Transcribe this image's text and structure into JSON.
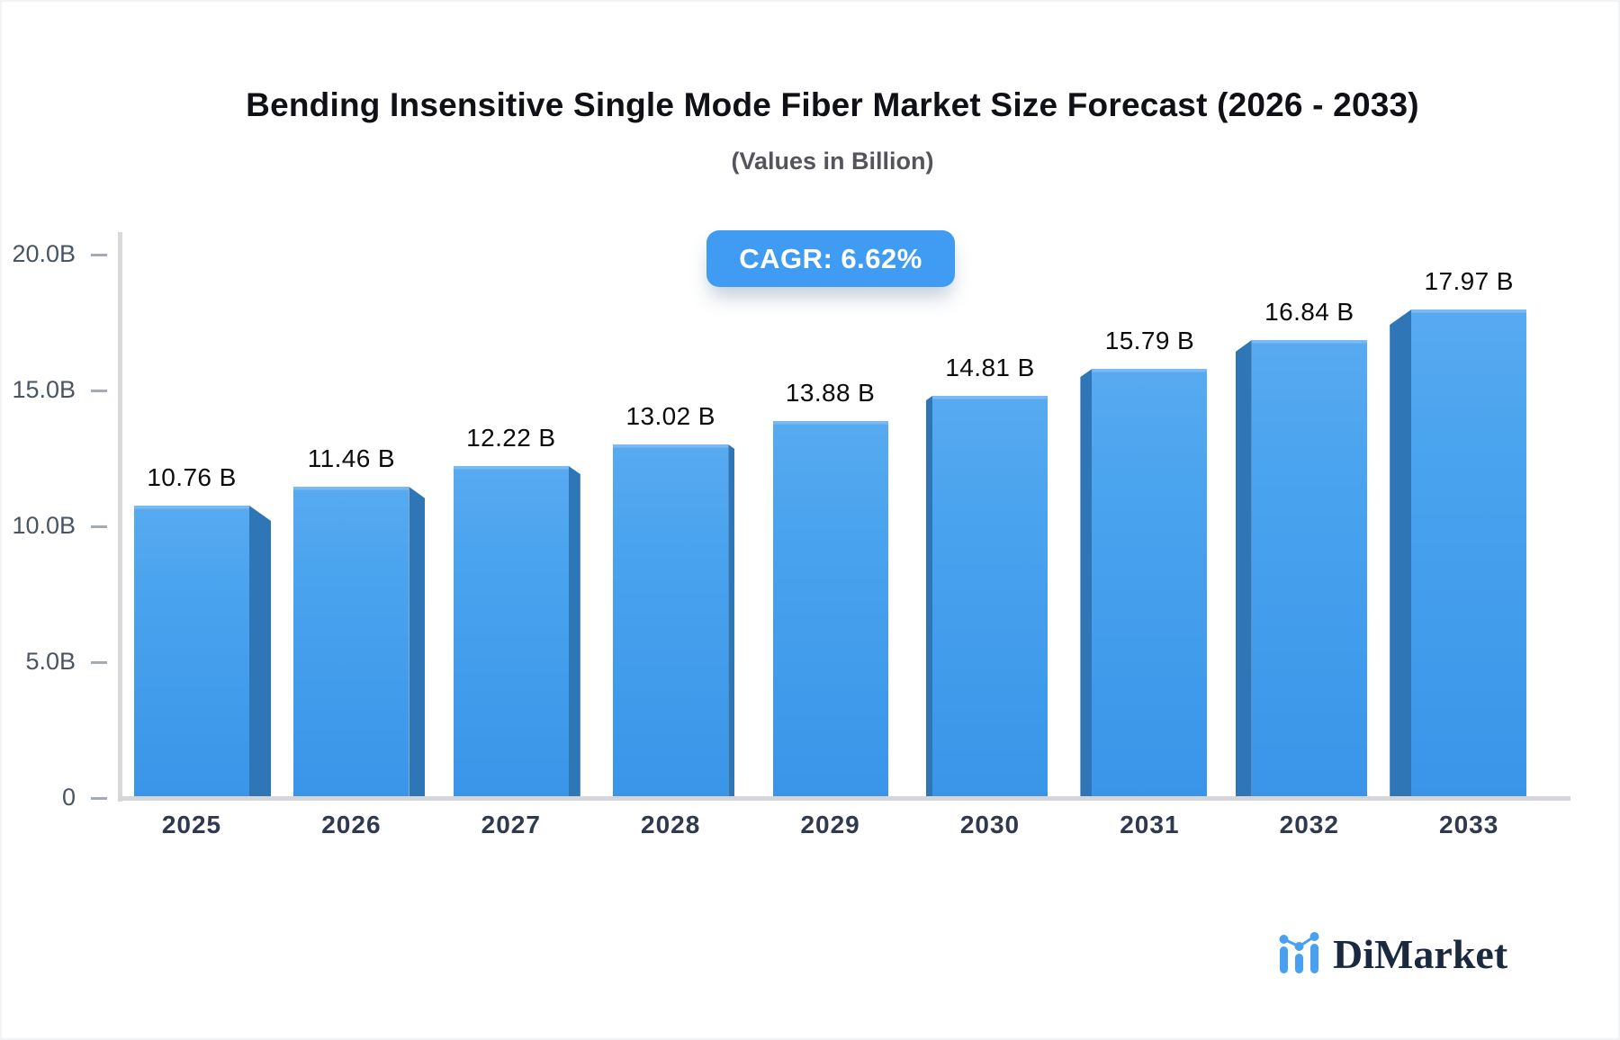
{
  "header": {
    "title": "Bending Insensitive Single Mode Fiber Market Size Forecast (2026 - 2033)",
    "subtitle": "(Values in Billion)"
  },
  "badge": {
    "label": "CAGR: 6.62%"
  },
  "chart_data": {
    "type": "bar",
    "title": "Bending Insensitive Single Mode Fiber Market Size Forecast (2026 - 2033)",
    "subtitle": "(Values in Billion)",
    "cagr": "6.62%",
    "categories": [
      "2025",
      "2026",
      "2027",
      "2028",
      "2029",
      "2030",
      "2031",
      "2032",
      "2033"
    ],
    "values": [
      10.76,
      11.46,
      12.22,
      13.02,
      13.88,
      14.81,
      15.79,
      16.84,
      17.97
    ],
    "value_labels": [
      "10.76 B",
      "11.46 B",
      "12.22 B",
      "13.02 B",
      "13.88 B",
      "14.81 B",
      "15.79 B",
      "16.84 B",
      "17.97 B"
    ],
    "xlabel": "",
    "ylabel": "",
    "ylim": [
      0,
      20
    ],
    "y_ticks": [
      {
        "label": "20.0B",
        "value": 20
      },
      {
        "label": "15.0B",
        "value": 15
      },
      {
        "label": "10.0B",
        "value": 10
      },
      {
        "label": "5.0B",
        "value": 5
      },
      {
        "label": "0",
        "value": 0
      }
    ],
    "grid": false,
    "legend": false
  },
  "logo": {
    "text": "DiMarket",
    "icon": "bar-line-chart-icon"
  },
  "colors": {
    "bar_face_top": "#79baf4",
    "bar_face": "#4aa3ee",
    "bar_face_bottom": "#3a95e9",
    "bar_side": "#2e76b6",
    "badge_bg": "#3f9cf2",
    "axis": "#d5d7da",
    "tick_text": "#4a5563",
    "value_text": "#0c0c0f",
    "xlabel_text": "#2f3950",
    "logo_text": "#1b2940",
    "logo_icon": "#4aa0f0"
  }
}
